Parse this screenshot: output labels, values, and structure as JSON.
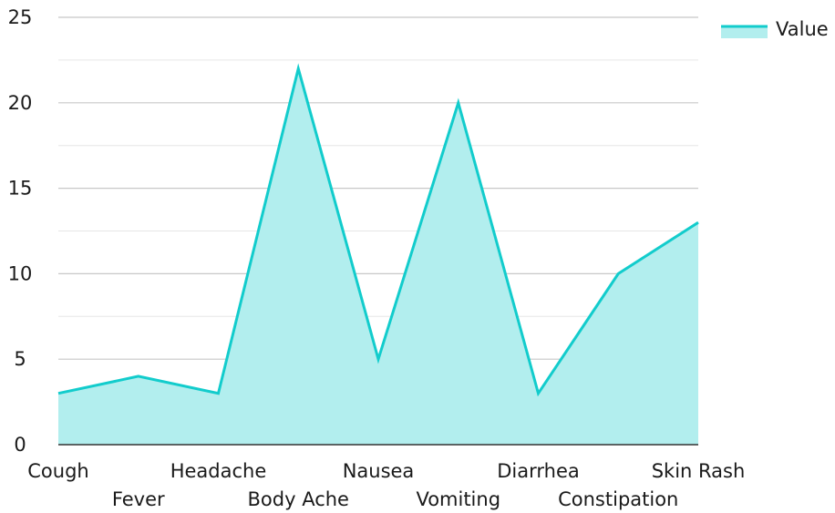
{
  "chart_data": {
    "type": "area",
    "categories": [
      "Cough",
      "Fever",
      "Headache",
      "Body Ache",
      "Nausea",
      "Vomiting",
      "Diarrhea",
      "Constipation",
      "Skin Rash"
    ],
    "series": [
      {
        "name": "Value",
        "values": [
          3,
          4,
          3,
          22,
          5,
          20,
          3,
          10,
          13
        ]
      }
    ],
    "y_ticks": [
      "0",
      "5",
      "10",
      "15",
      "20",
      "25"
    ],
    "ylim": [
      0,
      25
    ],
    "grid": true,
    "legend_position": "top-right",
    "colors": {
      "line": "#12cccc",
      "fill": "#b2eeee",
      "grid_major": "#c8c8c8",
      "grid_minor": "#e6e6e6",
      "axis": "#333333"
    }
  }
}
